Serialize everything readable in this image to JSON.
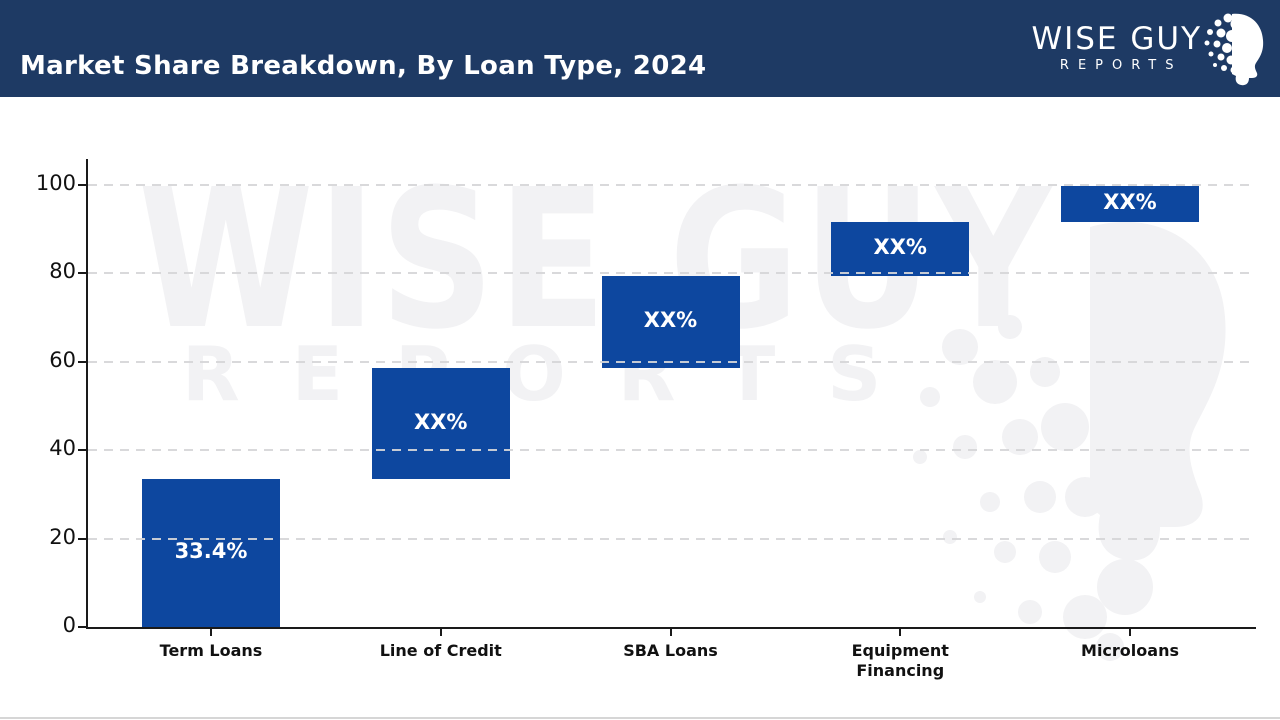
{
  "header": {
    "title": "Market Share Breakdown, By Loan Type, 2024",
    "logo": {
      "brand": "WISE GUY",
      "sub": "REPORTS"
    }
  },
  "watermark": {
    "brand": "WISE GUY",
    "sub": "REPORTS"
  },
  "chart_data": {
    "type": "bar",
    "subtype": "waterfall",
    "title": "Market Share Breakdown, By Loan Type, 2024",
    "categories": [
      "Term Loans",
      "Line of Credit",
      "SBA Loans",
      "Equipment Financing",
      "Microloans"
    ],
    "categories_display": [
      "Term Loans",
      "Line of Credit",
      "SBA Loans",
      "Equipment\nFinancing",
      "Microloans"
    ],
    "segments": [
      {
        "category": "Term Loans",
        "start": 0,
        "end": 33.4,
        "label": "33.4%"
      },
      {
        "category": "Line of Credit",
        "start": 33.4,
        "end": 58.5,
        "label": "XX%"
      },
      {
        "category": "SBA Loans",
        "start": 58.5,
        "end": 79.5,
        "label": "XX%"
      },
      {
        "category": "Equipment Financing",
        "start": 79.5,
        "end": 91.6,
        "label": "XX%"
      },
      {
        "category": "Microloans",
        "start": 91.6,
        "end": 99.8,
        "label": "XX%"
      }
    ],
    "yticks": [
      0,
      20,
      40,
      60,
      80,
      100
    ],
    "ylim": [
      0,
      106
    ],
    "xlabel": "",
    "ylabel": "",
    "grid": true,
    "grid_style": "dashed",
    "grid_on_top": true,
    "legend": false,
    "bar_color": "#0d479f",
    "bar_label_color": "#ffffff"
  },
  "colors": {
    "header_bg": "#1e3a64",
    "title_text": "#ffffff",
    "bar": "#0d479f",
    "axis": "#1a1a1a",
    "grid": "#d6d6d8",
    "watermark": "#f2f2f4",
    "bottom_hairline": "#d6d6d6"
  }
}
